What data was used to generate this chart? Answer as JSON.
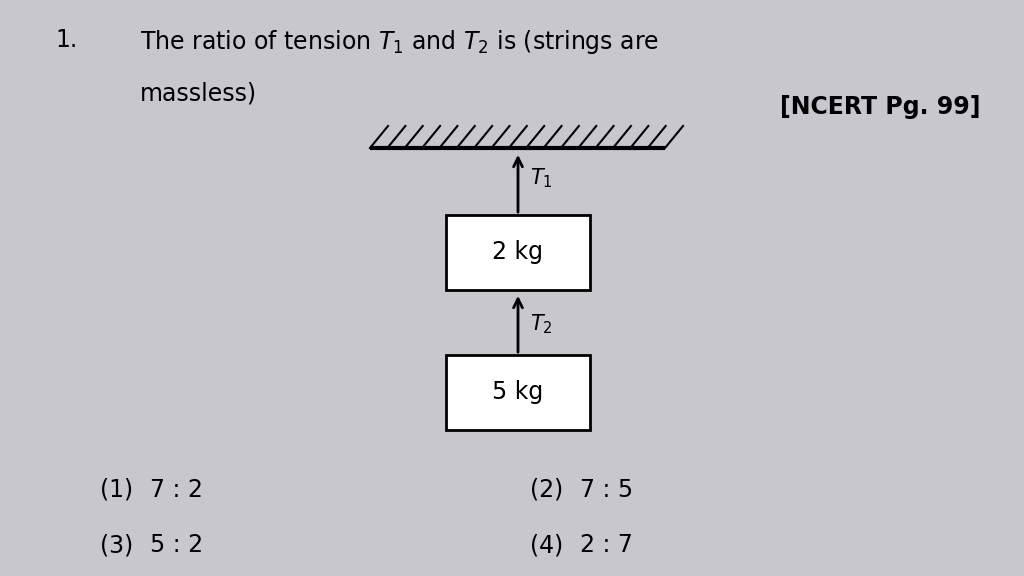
{
  "bg_color": "#c8c8cc",
  "question_number": "1.",
  "question_text_line1": "The ratio of tension $T_1$ and $T_2$ is (strings are",
  "question_text_line2": "massless)",
  "ncert_ref": "[NCERT Pg. 99]",
  "box1_label": "2 kg",
  "box2_label": "5 kg",
  "T1_label": "$T_1$",
  "T2_label": "$T_2$",
  "options": [
    {
      "num": "(1)",
      "text": "7 : 2"
    },
    {
      "num": "(2)",
      "text": "7 : 5"
    },
    {
      "num": "(3)",
      "text": "5 : 2"
    },
    {
      "num": "(4)",
      "text": "2 : 7"
    }
  ],
  "box_color": "white",
  "box_edge_color": "black",
  "arrow_color": "black",
  "text_color": "black",
  "hatch_color": "black",
  "ceiling_color": "black"
}
